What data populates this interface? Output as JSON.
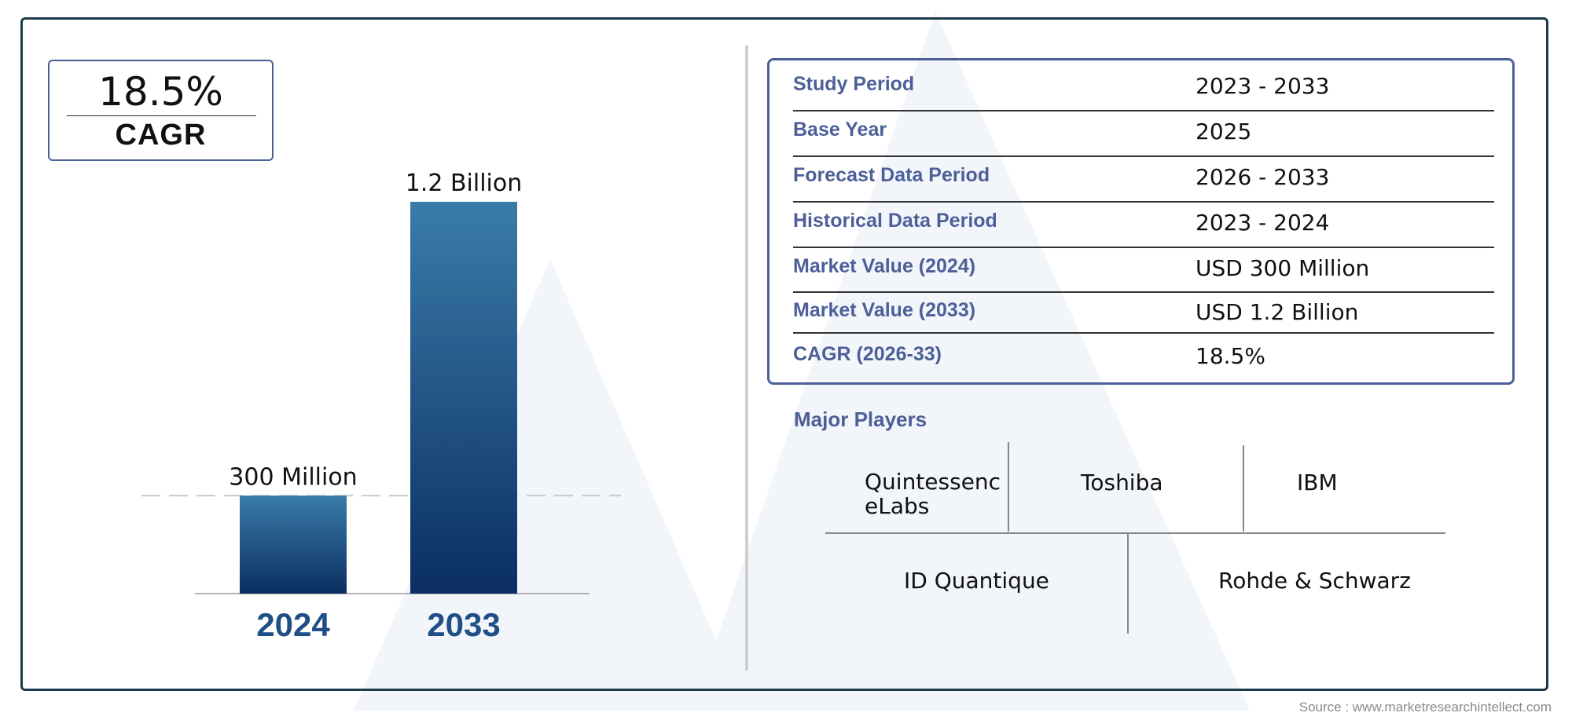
{
  "cagr": {
    "value": "18.5%",
    "label": "CAGR"
  },
  "chart_data": {
    "type": "bar",
    "categories": [
      "2024",
      "2033"
    ],
    "values": [
      300,
      1200
    ],
    "value_unit": "USD Million",
    "data_labels": [
      "300 Million",
      "1.2 Billion"
    ],
    "reference_line": {
      "value": 300,
      "style": "dashed"
    },
    "ylim": [
      0,
      1200
    ],
    "grid": false,
    "colors": {
      "bar_top": "#3a7ca8",
      "bar_bottom": "#0b2e62",
      "axis_label": "#1f4f86"
    }
  },
  "info_table": {
    "rows": [
      {
        "label": "Study Period",
        "value": "2023 - 2033"
      },
      {
        "label": "Base Year",
        "value": "2025"
      },
      {
        "label": "Forecast Data Period",
        "value": "2026 - 2033"
      },
      {
        "label": "Historical Data Period",
        "value": "2023 - 2024"
      },
      {
        "label": "Market Value (2024)",
        "value": "USD 300 Million"
      },
      {
        "label": "Market Value (2033)",
        "value": "USD 1.2 Billion"
      },
      {
        "label": "CAGR (2026-33)",
        "value": "18.5%"
      }
    ]
  },
  "players": {
    "title": "Major Players",
    "names": [
      "Quintessenc eLabs",
      "Toshiba",
      "IBM",
      "ID Quantique",
      "Rohde & Schwarz"
    ]
  },
  "source": "Source : www.marketresearchintellect.com",
  "colors": {
    "frame": "#1b3a4b",
    "accent": "#4d5f99"
  }
}
